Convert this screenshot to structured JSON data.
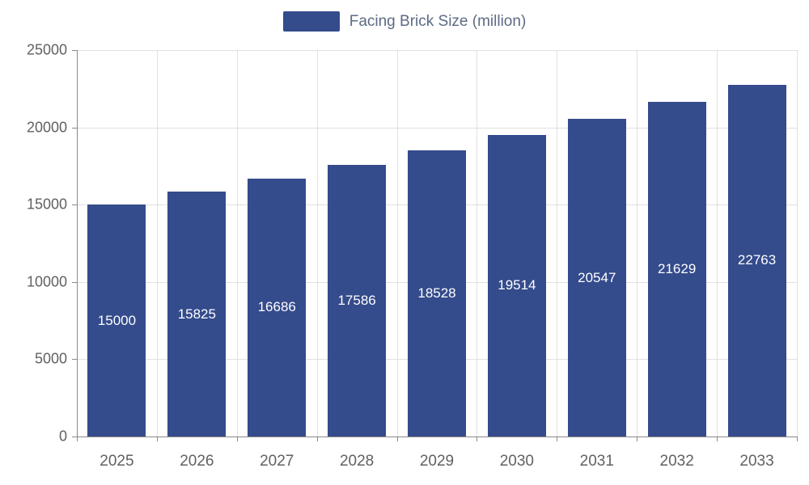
{
  "legend": {
    "label": "Facing Brick Size (million)",
    "swatch_color": "#344b8c"
  },
  "chart_data": {
    "type": "bar",
    "title": "",
    "categories": [
      "2025",
      "2026",
      "2027",
      "2028",
      "2029",
      "2030",
      "2031",
      "2032",
      "2033"
    ],
    "series": [
      {
        "name": "Facing Brick Size (million)",
        "values": [
          15000,
          15825,
          16686,
          17586,
          18528,
          19514,
          20547,
          21629,
          22763
        ]
      }
    ],
    "xlabel": "",
    "ylabel": "",
    "ylim": [
      0,
      25000
    ],
    "yticks": [
      0,
      5000,
      10000,
      15000,
      20000,
      25000
    ],
    "grid": "on",
    "legend_position": "top-center",
    "bar_color": "#344b8c",
    "bar_label_color": "#ffffff",
    "axis_color": "#8a8a8a",
    "gridline_color": "#e0e0e0",
    "tick_label_color": "#616161"
  }
}
